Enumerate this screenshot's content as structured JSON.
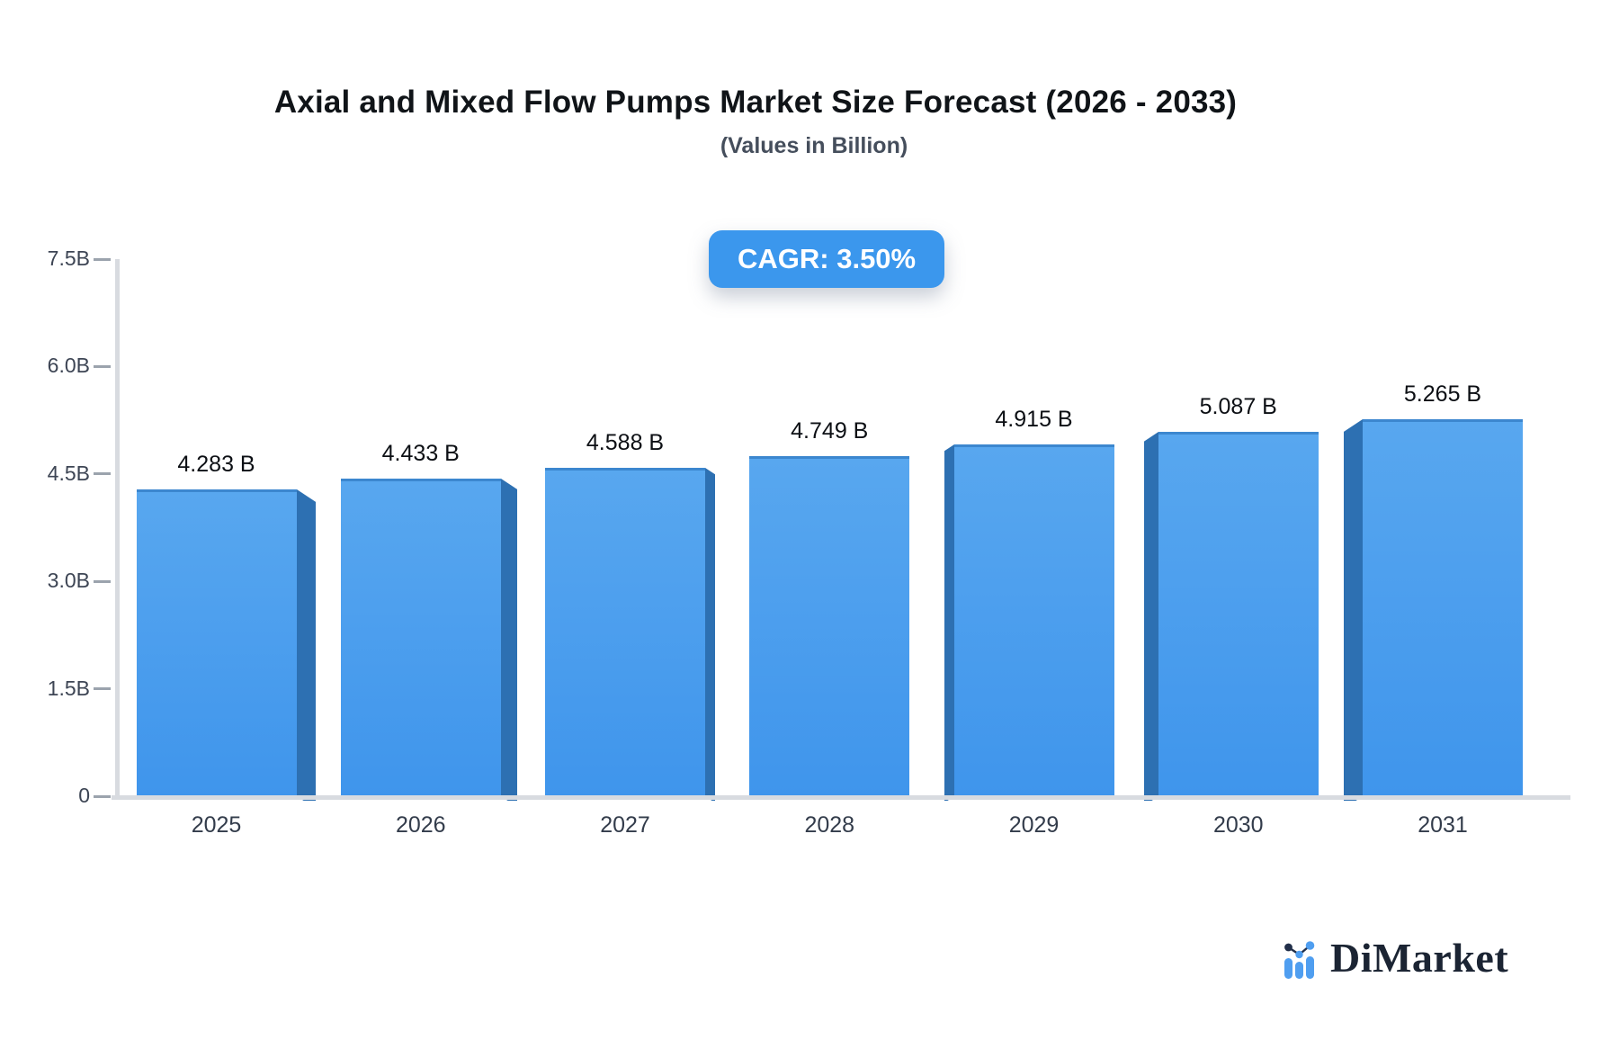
{
  "header": {
    "title": "Axial and Mixed Flow Pumps Market Size Forecast (2026 - 2033)",
    "subtitle": "(Values in Billion)",
    "cagr_label": "CAGR: 3.50%"
  },
  "brand": {
    "name": "DiMarket",
    "icon": "dimarket-bars-logo-icon"
  },
  "colors": {
    "badge_bg": "#3b97ed",
    "bar_face_top": "#58a7ef",
    "bar_face_bottom": "#3f95ec",
    "bar_face_edge": "#3c87cf",
    "bar_side": "#2d70b2",
    "axis": "#d8dbe0",
    "tick_text": "#3d4554",
    "label_text": "#0c0f14",
    "logo_blue": "#4f9ef0",
    "logo_dark": "#22304a"
  },
  "chart_data": {
    "type": "bar",
    "style": "3d-perspective-bars",
    "title": "Axial and Mixed Flow Pumps Market Size Forecast (2026 - 2033)",
    "subtitle": "(Values in Billion)",
    "cagr": "3.50%",
    "categories": [
      "2025",
      "2026",
      "2027",
      "2028",
      "2029",
      "2030",
      "2031"
    ],
    "values": [
      4.283,
      4.433,
      4.588,
      4.749,
      4.915,
      5.087,
      5.265
    ],
    "value_labels": [
      "4.283 B",
      "4.433 B",
      "4.588 B",
      "4.749 B",
      "4.915 B",
      "5.087 B",
      "5.265 B"
    ],
    "xlabel": "",
    "ylabel": "",
    "ylim": [
      0,
      7.5
    ],
    "yticks": [
      0,
      1.5,
      3.0,
      4.5,
      6.0,
      7.5
    ],
    "ytick_labels": [
      "0",
      "1.5B",
      "3.0B",
      "4.5B",
      "6.0B",
      "7.5B"
    ],
    "grid": false,
    "legend": "none"
  }
}
